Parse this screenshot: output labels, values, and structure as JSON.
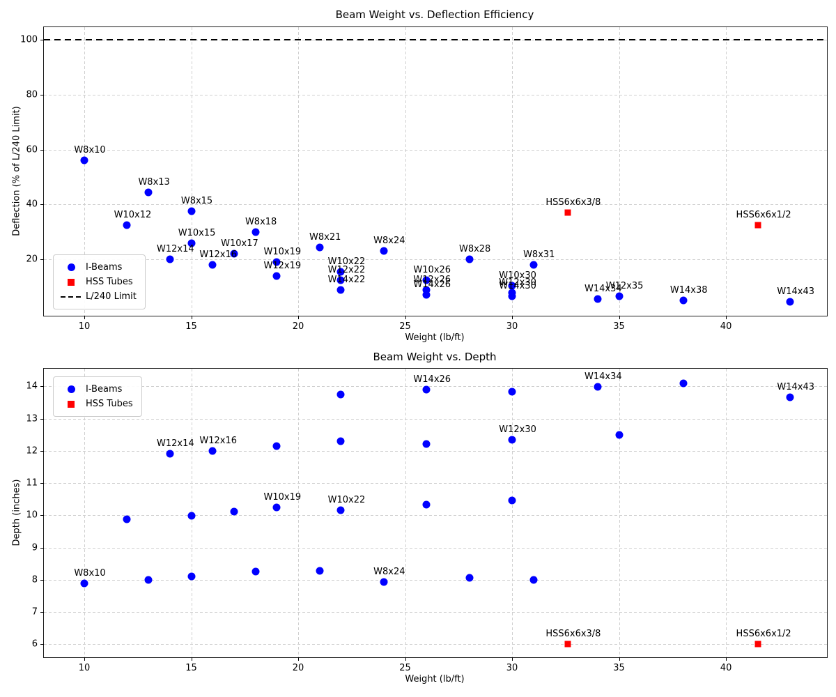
{
  "figure": {
    "background": "#ffffff"
  },
  "colors": {
    "ibeam": "#0000ff",
    "hss": "#ff0000",
    "limit_line": "#000000",
    "grid": "#cfcfcf"
  },
  "chart_data": [
    {
      "type": "scatter",
      "title": "Beam Weight vs. Deflection Efficiency",
      "xlabel": "Weight (lb/ft)",
      "ylabel": "Deflection (% of L/240 Limit)",
      "xlim": [
        8.11,
        44.72
      ],
      "ylim": [
        -0.5,
        104.6
      ],
      "xticks": [
        10,
        15,
        20,
        25,
        30,
        35,
        40
      ],
      "yticks": [
        20,
        40,
        60,
        80,
        100
      ],
      "grid": true,
      "legend_position": "lower-left",
      "hline": {
        "y": 100,
        "label": "L/240 Limit",
        "color": "#000000",
        "style": "dashed"
      },
      "series": [
        {
          "name": "I-Beams",
          "marker": "circle",
          "color": "#0000ff",
          "points": [
            {
              "label": "W8x10",
              "x": 10,
              "y": 56,
              "annotated": true
            },
            {
              "label": "W10x12",
              "x": 12,
              "y": 32.5,
              "annotated": true
            },
            {
              "label": "W8x13",
              "x": 13,
              "y": 44.5,
              "annotated": true
            },
            {
              "label": "W12x14",
              "x": 14,
              "y": 20,
              "annotated": true
            },
            {
              "label": "W8x15",
              "x": 15,
              "y": 37.5,
              "annotated": true
            },
            {
              "label": "W10x15",
              "x": 15,
              "y": 26,
              "annotated": true
            },
            {
              "label": "W12x16",
              "x": 16,
              "y": 18,
              "annotated": true
            },
            {
              "label": "W10x17",
              "x": 17,
              "y": 22,
              "annotated": true
            },
            {
              "label": "W8x18",
              "x": 18,
              "y": 30,
              "annotated": true
            },
            {
              "label": "W10x19",
              "x": 19,
              "y": 19,
              "annotated": true
            },
            {
              "label": "W12x19",
              "x": 19,
              "y": 14,
              "annotated": true
            },
            {
              "label": "W8x21",
              "x": 21,
              "y": 24.5,
              "annotated": true
            },
            {
              "label": "W10x22",
              "x": 22,
              "y": 15.5,
              "annotated": true
            },
            {
              "label": "W12x22",
              "x": 22,
              "y": 12.5,
              "annotated": true
            },
            {
              "label": "W14x22",
              "x": 22,
              "y": 9,
              "annotated": true
            },
            {
              "label": "W8x24",
              "x": 24,
              "y": 23,
              "annotated": true
            },
            {
              "label": "W10x26",
              "x": 26,
              "y": 12.5,
              "annotated": true
            },
            {
              "label": "W12x26",
              "x": 26,
              "y": 9,
              "annotated": true
            },
            {
              "label": "W14x26",
              "x": 26,
              "y": 7,
              "annotated": true
            },
            {
              "label": "W8x28",
              "x": 28,
              "y": 20,
              "annotated": true
            },
            {
              "label": "W10x30",
              "x": 30,
              "y": 10.5,
              "annotated": true
            },
            {
              "label": "W12x30",
              "x": 30,
              "y": 8,
              "annotated": true
            },
            {
              "label": "W14x30",
              "x": 30,
              "y": 6.5,
              "annotated": true
            },
            {
              "label": "W8x31",
              "x": 31,
              "y": 18,
              "annotated": true
            },
            {
              "label": "W14x34",
              "x": 34,
              "y": 5.5,
              "annotated": true
            },
            {
              "label": "W12x35",
              "x": 35,
              "y": 6.5,
              "annotated": true
            },
            {
              "label": "W14x38",
              "x": 38,
              "y": 5,
              "annotated": true
            },
            {
              "label": "W14x43",
              "x": 43,
              "y": 4.5,
              "annotated": true
            }
          ]
        },
        {
          "name": "HSS Tubes",
          "marker": "square",
          "color": "#ff0000",
          "points": [
            {
              "label": "HSS6x6x3/8",
              "x": 32.6,
              "y": 37,
              "annotated": true
            },
            {
              "label": "HSS6x6x1/2",
              "x": 41.5,
              "y": 32.5,
              "annotated": true
            }
          ]
        }
      ]
    },
    {
      "type": "scatter",
      "title": "Beam Weight vs. Depth",
      "xlabel": "Weight (lb/ft)",
      "ylabel": "Depth (inches)",
      "xlim": [
        8.11,
        44.72
      ],
      "ylim": [
        5.6,
        14.55
      ],
      "xticks": [
        10,
        15,
        20,
        25,
        30,
        35,
        40
      ],
      "yticks": [
        6,
        7,
        8,
        9,
        10,
        11,
        12,
        13,
        14
      ],
      "grid": true,
      "legend_position": "upper-left",
      "series": [
        {
          "name": "I-Beams",
          "marker": "circle",
          "color": "#0000ff",
          "points": [
            {
              "label": "W8x10",
              "x": 10,
              "y": 7.89,
              "annotated": true
            },
            {
              "label": "W10x12",
              "x": 12,
              "y": 9.87,
              "annotated": false
            },
            {
              "label": "W8x13",
              "x": 13,
              "y": 7.99,
              "annotated": false
            },
            {
              "label": "W12x14",
              "x": 14,
              "y": 11.91,
              "annotated": true
            },
            {
              "label": "W8x15",
              "x": 15,
              "y": 8.11,
              "annotated": false
            },
            {
              "label": "W10x15",
              "x": 15,
              "y": 9.99,
              "annotated": false
            },
            {
              "label": "W12x16",
              "x": 16,
              "y": 11.99,
              "annotated": true
            },
            {
              "label": "W10x17",
              "x": 17,
              "y": 10.11,
              "annotated": false
            },
            {
              "label": "W8x18",
              "x": 18,
              "y": 8.26,
              "annotated": false
            },
            {
              "label": "W10x19",
              "x": 19,
              "y": 10.24,
              "annotated": true
            },
            {
              "label": "W12x19",
              "x": 19,
              "y": 12.16,
              "annotated": false
            },
            {
              "label": "W8x21",
              "x": 21,
              "y": 8.28,
              "annotated": false
            },
            {
              "label": "W10x22",
              "x": 22,
              "y": 10.17,
              "annotated": true
            },
            {
              "label": "W12x22",
              "x": 22,
              "y": 12.31,
              "annotated": false
            },
            {
              "label": "W14x22",
              "x": 22,
              "y": 13.74,
              "annotated": false
            },
            {
              "label": "W8x24",
              "x": 24,
              "y": 7.93,
              "annotated": true
            },
            {
              "label": "W10x26",
              "x": 26,
              "y": 10.33,
              "annotated": false
            },
            {
              "label": "W12x26",
              "x": 26,
              "y": 12.22,
              "annotated": false
            },
            {
              "label": "W14x26",
              "x": 26,
              "y": 13.91,
              "annotated": true
            },
            {
              "label": "W8x28",
              "x": 28,
              "y": 8.06,
              "annotated": false
            },
            {
              "label": "W10x30",
              "x": 30,
              "y": 10.47,
              "annotated": false
            },
            {
              "label": "W12x30",
              "x": 30,
              "y": 12.34,
              "annotated": true
            },
            {
              "label": "W14x30",
              "x": 30,
              "y": 13.84,
              "annotated": false
            },
            {
              "label": "W8x31",
              "x": 31,
              "y": 8.0,
              "annotated": false
            },
            {
              "label": "W14x34",
              "x": 34,
              "y": 13.98,
              "annotated": true
            },
            {
              "label": "W12x35",
              "x": 35,
              "y": 12.5,
              "annotated": false
            },
            {
              "label": "W14x38",
              "x": 38,
              "y": 14.1,
              "annotated": false
            },
            {
              "label": "W14x43",
              "x": 43,
              "y": 13.66,
              "annotated": true
            }
          ]
        },
        {
          "name": "HSS Tubes",
          "marker": "square",
          "color": "#ff0000",
          "points": [
            {
              "label": "HSS6x6x3/8",
              "x": 32.6,
              "y": 6.0,
              "annotated": true
            },
            {
              "label": "HSS6x6x1/2",
              "x": 41.5,
              "y": 6.0,
              "annotated": true
            }
          ]
        }
      ]
    }
  ]
}
